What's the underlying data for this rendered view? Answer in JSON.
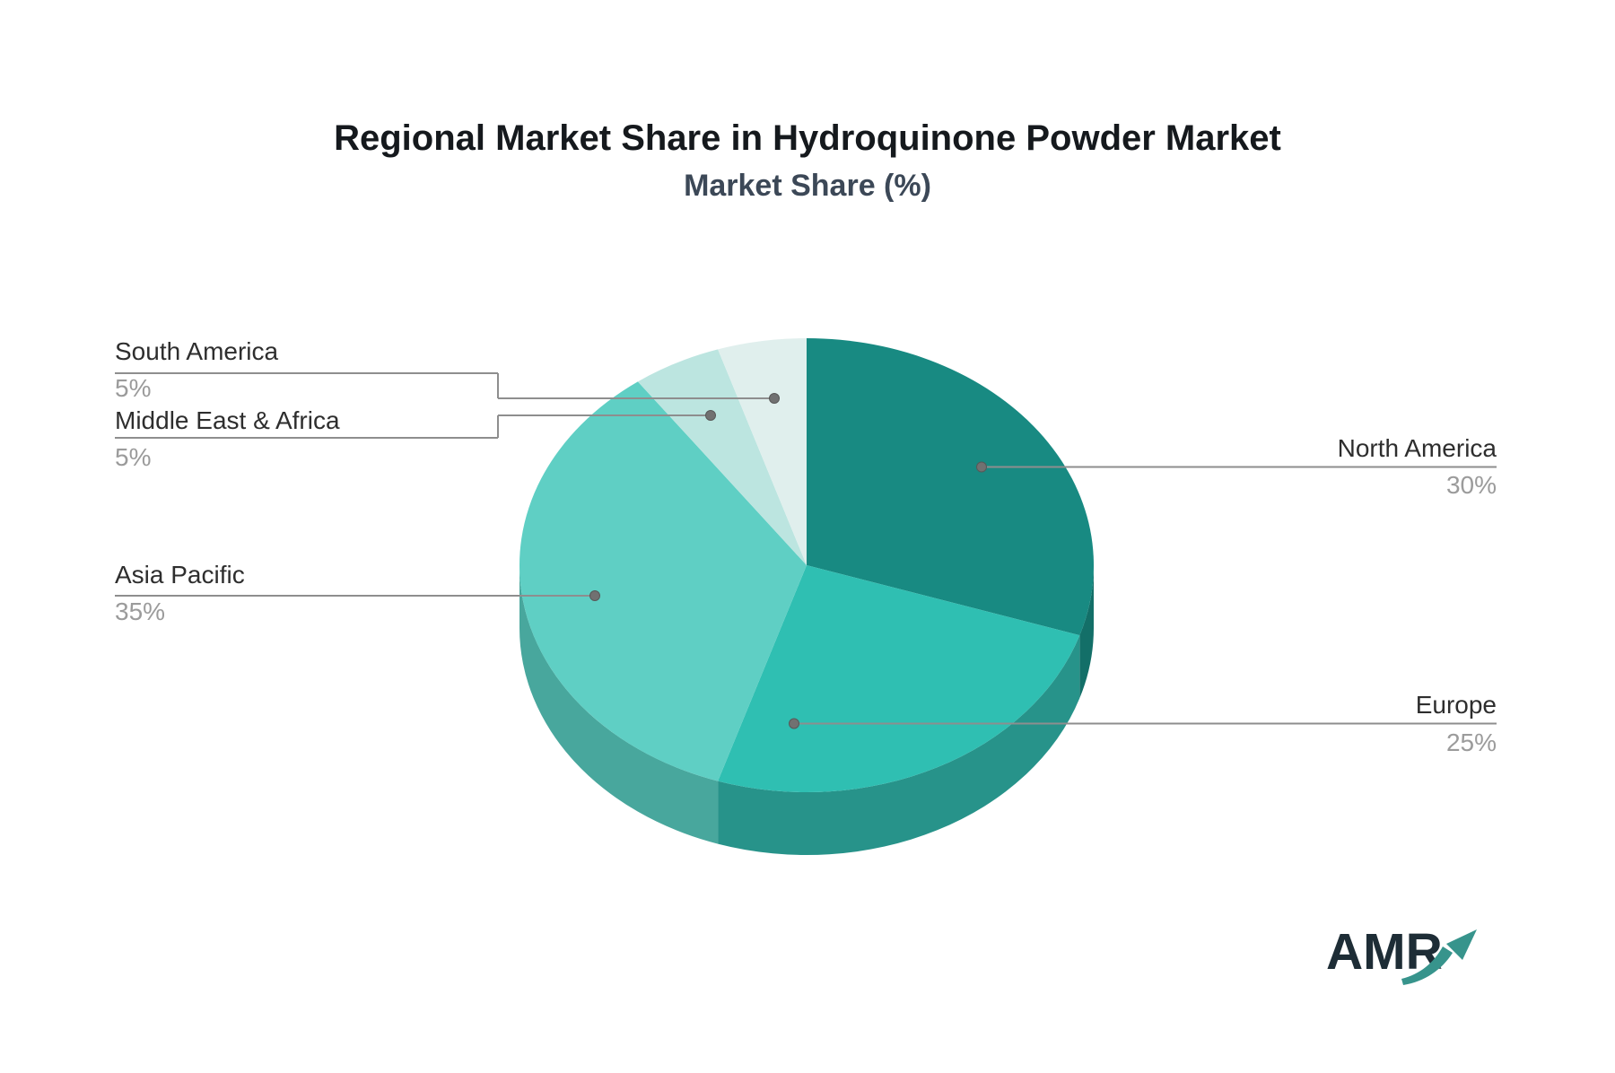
{
  "chart_data": {
    "type": "pie",
    "style": "3d",
    "title": "Regional Market Share in Hydroquinone Powder Market",
    "subtitle": "Market Share (%)",
    "unit": "%",
    "start_angle_deg": 0,
    "direction": "clockwise",
    "legend_position": "none",
    "labels_shown_as": "outside-callouts",
    "slices": [
      {
        "label": "North America",
        "value": 30,
        "pct_label": "30%",
        "color": "#188a82",
        "side_color": "#136f68",
        "callout_side": "right"
      },
      {
        "label": "Europe",
        "value": 25,
        "pct_label": "25%",
        "color": "#2fbfb2",
        "side_color": "#27938a",
        "callout_side": "right"
      },
      {
        "label": "Asia Pacific",
        "value": 35,
        "pct_label": "35%",
        "color": "#5fcfc4",
        "side_color": "#48a79d",
        "callout_side": "left"
      },
      {
        "label": "Middle East & Africa",
        "value": 5,
        "pct_label": "5%",
        "color": "#bce5e0",
        "side_color": "#9cc7c2",
        "callout_side": "left"
      },
      {
        "label": "South America",
        "value": 5,
        "pct_label": "5%",
        "color": "#e0efed",
        "side_color": "#bfd6d3",
        "callout_side": "left"
      }
    ]
  },
  "branding": {
    "logo_text": "AMR",
    "logo_color": "#1e2d36",
    "arrow_color": "#37948c"
  },
  "palette": {
    "background": "#ffffff",
    "title_color": "#15191d",
    "subtitle_color": "#3c4857",
    "label_color": "#2e2e2e",
    "pct_color": "#9b9b9b",
    "connector_color": "#8e8e8e",
    "dot_color": "#717171"
  }
}
